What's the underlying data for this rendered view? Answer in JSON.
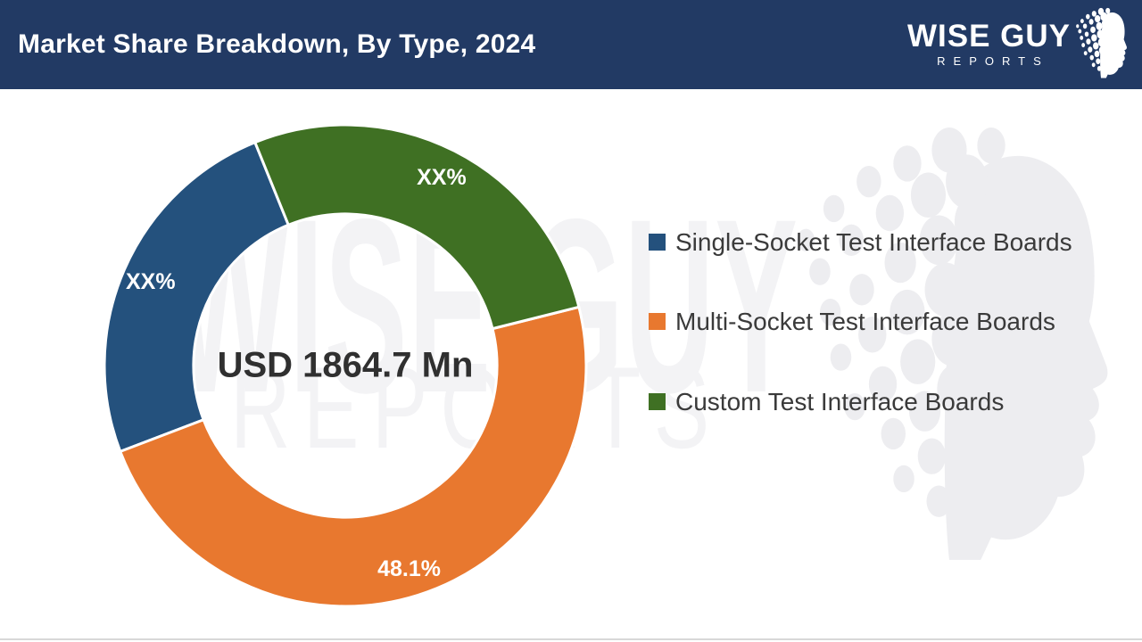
{
  "header": {
    "title": "Market Share Breakdown, By Type, 2024",
    "bg_color": "#223A64",
    "logo": {
      "wordmark": "WISE GUY",
      "subtitle": "REPORTS"
    }
  },
  "watermark": {
    "wordmark": "WISE GUY",
    "subtitle": "REPORTS"
  },
  "chart_data": {
    "type": "pie",
    "subtype": "donut",
    "title": "Market Share Breakdown, By Type, 2024",
    "center_label": "USD 1864.7 Mn",
    "rotation_deg": -22,
    "direction": "counterclockwise",
    "inner_radius_ratio": 0.63,
    "legend_position": "right",
    "slices": [
      {
        "name": "Single-Socket Test Interface Boards",
        "pct": 24.7,
        "display_label": "XX%",
        "color": "#24517D"
      },
      {
        "name": "Multi-Socket Test Interface Boards",
        "pct": 48.1,
        "display_label": "48.1%",
        "color": "#E8782F"
      },
      {
        "name": "Custom Test Interface Boards",
        "pct": 27.2,
        "display_label": "XX%",
        "color": "#3F7023"
      }
    ]
  }
}
